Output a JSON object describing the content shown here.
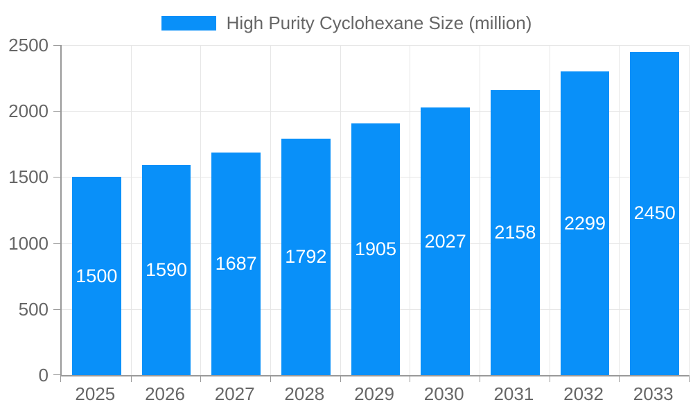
{
  "chart_data": {
    "type": "bar",
    "title": "High Purity Cyclohexane Size (million)",
    "legend": {
      "label": "High Purity Cyclohexane Size (million)",
      "position": "top-center"
    },
    "categories": [
      "2025",
      "2026",
      "2027",
      "2028",
      "2029",
      "2030",
      "2031",
      "2032",
      "2033"
    ],
    "values": [
      1500,
      1590,
      1687,
      1792,
      1905,
      2027,
      2158,
      2299,
      2450
    ],
    "xlabel": "",
    "ylabel": "",
    "ylim": [
      0,
      2500
    ],
    "yticks": [
      0,
      500,
      1000,
      1500,
      2000,
      2500
    ],
    "grid": true,
    "value_labels_inside_bars": true,
    "colors": {
      "bar": "#0990F9",
      "value_label": "#FFFFFF",
      "axis_text": "#666666",
      "axis_line": "#999999",
      "grid_line": "#E6E6E6",
      "background": "#FFFFFF"
    }
  }
}
